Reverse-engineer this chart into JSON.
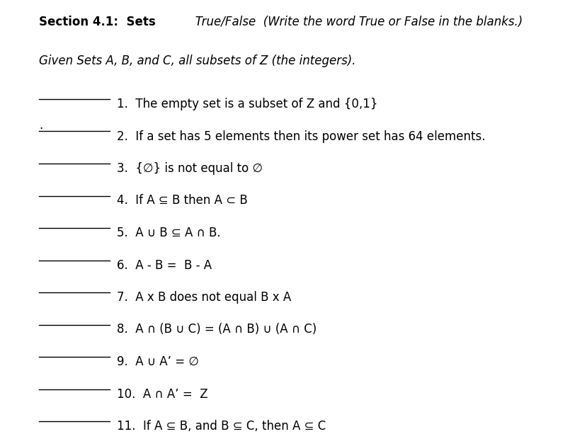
{
  "title_bold": "Section 4.1:  Sets",
  "title_italic": "   True/False  (Write the word True or False in the blanks.)",
  "subtitle": "Given Sets A, B, and C, all subsets of Z (the integers).",
  "background_color": "#ffffff",
  "text_color": "#000000",
  "items": [
    "1.  The empty set is a subset of Z and {0,1}",
    "2.  If a set has 5 elements then its power set has 64 elements.",
    "3.  {∅} is not equal to ∅",
    "4.  If A ⊆ B then A ⊂ B",
    "5.  A ∪ B ⊆ A ∩ B.",
    "6.  A - B =  B - A",
    "7.  A x B does not equal B x A",
    "8.  A ∩ (B ∪ C) = (A ∩ B) ∪ (A ∩ C)",
    "9.  A ∪ A’ = ∅",
    "10.  A ∩ A’ =  Z",
    "11.  If A ⊆ B, and B ⊆ C, then A ⊆ C"
  ],
  "figsize": [
    8.05,
    6.13
  ],
  "dpi": 100,
  "title_fontsize": 12,
  "subtitle_fontsize": 12,
  "item_fontsize": 12
}
